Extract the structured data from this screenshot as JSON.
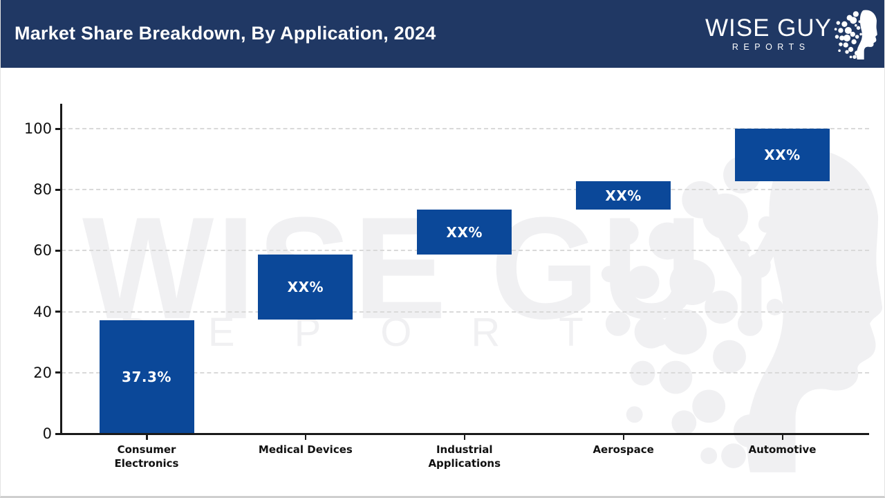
{
  "header": {
    "title": "Market Share Breakdown, By Application, 2024",
    "logo": {
      "name": "WISE GUY",
      "sub": "REPORTS"
    }
  },
  "watermark": {
    "name": "WISE GUY",
    "sub": "REPORTS"
  },
  "colors": {
    "header_bg": "#203864",
    "bar": "#0b4899",
    "grid": "#d9d9d9",
    "axis": "#1a1a1a",
    "watermark": "#f0f0f2",
    "label_on_bar": "#ffffff",
    "tick_text": "#111111"
  },
  "chart_data": {
    "type": "bar",
    "subtype": "waterfall",
    "title": "Market Share Breakdown, By Application, 2024",
    "categories": [
      "Consumer Electronics",
      "Medical Devices",
      "Industrial Applications",
      "Aerospace",
      "Automotive"
    ],
    "segments": [
      {
        "label": "Consumer Electronics",
        "start": 0,
        "end": 37.3,
        "span": 37.3,
        "value_label": "37.3%"
      },
      {
        "label": "Medical Devices",
        "start": 37.3,
        "end": 58.7,
        "span": 21.4,
        "value_label": "XX%"
      },
      {
        "label": "Industrial Applications",
        "start": 58.7,
        "end": 73.4,
        "span": 14.7,
        "value_label": "XX%"
      },
      {
        "label": "Aerospace",
        "start": 73.4,
        "end": 82.8,
        "span": 9.4,
        "value_label": "XX%"
      },
      {
        "label": "Automotive",
        "start": 82.8,
        "end": 100,
        "span": 17.2,
        "value_label": "XX%"
      }
    ],
    "yticks": [
      0,
      20,
      40,
      60,
      80,
      100
    ],
    "ylim": [
      0,
      100
    ],
    "grid": "dashed-horizontal",
    "legend": "none"
  }
}
